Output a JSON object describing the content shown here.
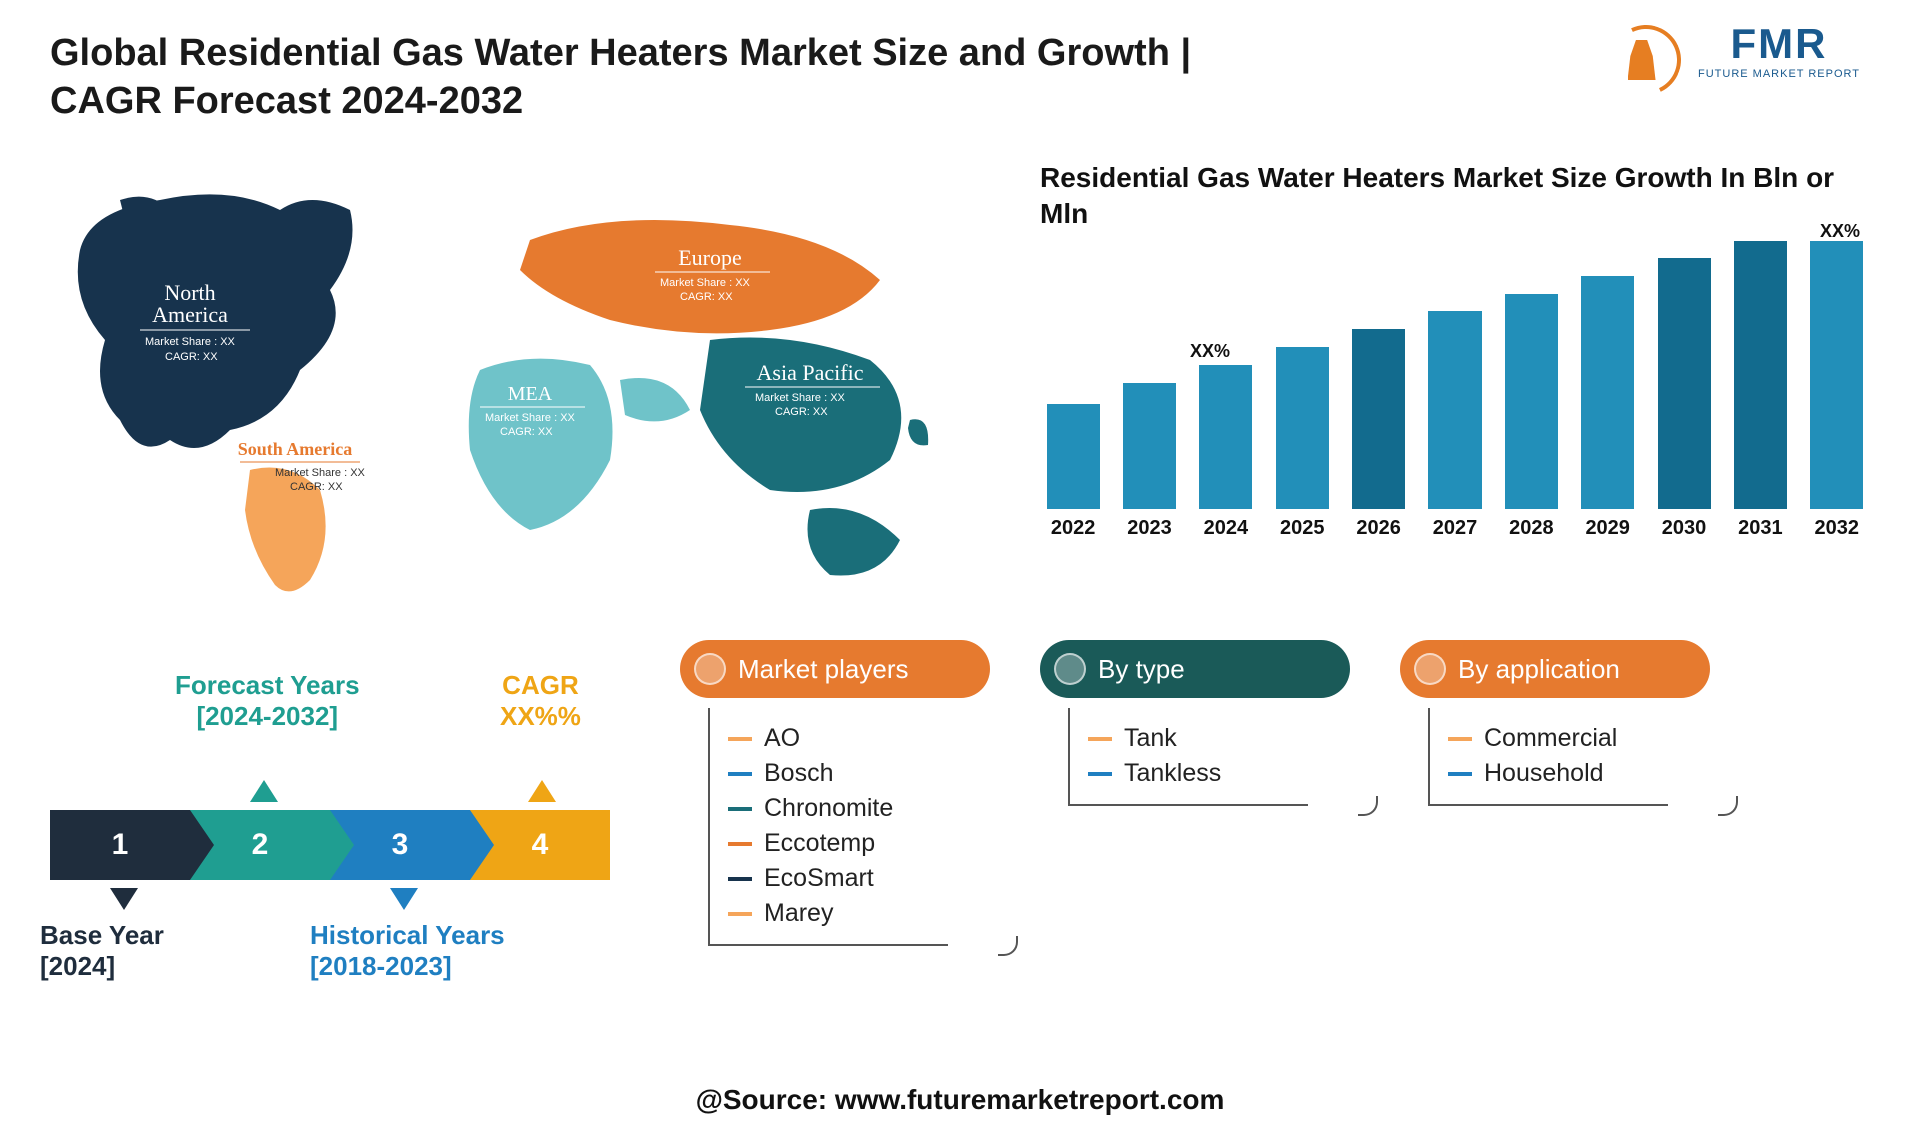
{
  "title": "Global Residential Gas Water Heaters Market Size and Growth | CAGR Forecast 2024-2032",
  "logo": {
    "main": "FMR",
    "sub": "FUTURE MARKET REPORT"
  },
  "map": {
    "regions": [
      {
        "key": "na",
        "name": "North America",
        "share": "Market Share : XX",
        "cagr": "CAGR: XX",
        "color": "#17334d"
      },
      {
        "key": "sa",
        "name": "South America",
        "share": "Market Share : XX",
        "cagr": "CAGR: XX",
        "color": "#f5a55a"
      },
      {
        "key": "eu",
        "name": "Europe",
        "share": "Market Share : XX",
        "cagr": "CAGR: XX",
        "color": "#e67a2f"
      },
      {
        "key": "mea",
        "name": "MEA",
        "share": "Market Share : XX",
        "cagr": "CAGR: XX",
        "color": "#6fc3c9"
      },
      {
        "key": "ap",
        "name": "Asia Pacific",
        "share": "Market Share : XX",
        "cagr": "CAGR: XX",
        "color": "#1a6e79"
      }
    ]
  },
  "chart": {
    "title": "Residential Gas Water Heaters Market Size Growth In Bln or Mln",
    "background_color": "#ffffff",
    "bar_colors": {
      "normal": "#228fb9",
      "dark": "#126b8e"
    },
    "annotation_2024": "XX%",
    "annotation_2032": "XX%",
    "label_fontsize": 20,
    "columns": [
      {
        "year": "2022",
        "value": 35,
        "dark": false
      },
      {
        "year": "2023",
        "value": 42,
        "dark": false
      },
      {
        "year": "2024",
        "value": 48,
        "dark": false
      },
      {
        "year": "2025",
        "value": 54,
        "dark": false
      },
      {
        "year": "2026",
        "value": 60,
        "dark": true
      },
      {
        "year": "2027",
        "value": 66,
        "dark": false
      },
      {
        "year": "2028",
        "value": 72,
        "dark": false
      },
      {
        "year": "2029",
        "value": 78,
        "dark": false
      },
      {
        "year": "2030",
        "value": 84,
        "dark": true
      },
      {
        "year": "2031",
        "value": 90,
        "dark": true
      },
      {
        "year": "2032",
        "value": 96,
        "dark": false
      }
    ]
  },
  "timeline": {
    "segments": [
      {
        "num": "1",
        "color": "#1f2d3d"
      },
      {
        "num": "2",
        "color": "#1f9e91"
      },
      {
        "num": "3",
        "color": "#1f7fc1"
      },
      {
        "num": "4",
        "color": "#efa515"
      }
    ],
    "forecast": {
      "title": "Forecast Years",
      "range": "[2024-2032]",
      "color": "#1f9e91"
    },
    "cagr": {
      "title": "CAGR",
      "value": "XX%%",
      "color": "#efa515"
    },
    "base": {
      "title": "Base Year",
      "range": "[2024]",
      "color": "#1f2d3d"
    },
    "historical": {
      "title": "Historical Years",
      "range": "[2018-2023]",
      "color": "#1f7fc1"
    }
  },
  "categories": [
    {
      "key": "players",
      "label": "Market players",
      "pill_color": "#e67a2f",
      "items": [
        {
          "label": "AO",
          "color": "#f5a55a"
        },
        {
          "label": "Bosch",
          "color": "#1f7fc1"
        },
        {
          "label": "Chronomite",
          "color": "#1a6e79"
        },
        {
          "label": "Eccotemp",
          "color": "#e67a2f"
        },
        {
          "label": "EcoSmart",
          "color": "#17334d"
        },
        {
          "label": "Marey",
          "color": "#f5a55a"
        }
      ]
    },
    {
      "key": "type",
      "label": "By type",
      "pill_color": "#1a5a58",
      "items": [
        {
          "label": "Tank",
          "color": "#f5a55a"
        },
        {
          "label": "Tankless",
          "color": "#1f7fc1"
        }
      ]
    },
    {
      "key": "application",
      "label": "By application",
      "pill_color": "#e67a2f",
      "items": [
        {
          "label": "Commercial",
          "color": "#f5a55a"
        },
        {
          "label": "Household",
          "color": "#1f7fc1"
        }
      ]
    }
  ],
  "source": "@Source: www.futuremarketreport.com"
}
